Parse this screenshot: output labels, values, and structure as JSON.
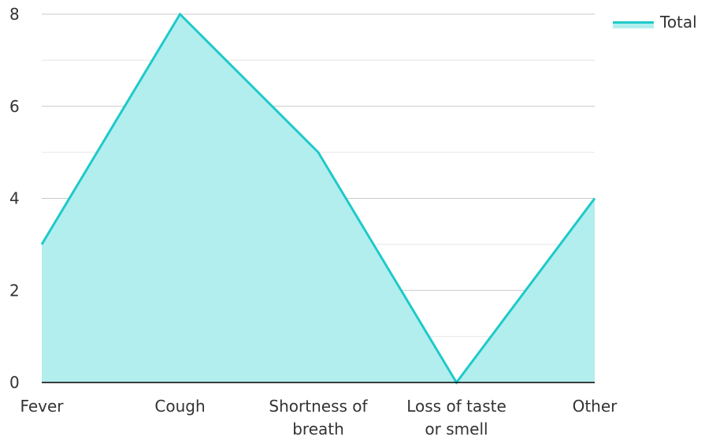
{
  "chart_data": {
    "type": "area",
    "categories": [
      "Fever",
      "Cough",
      "Shortness of breath",
      "Loss of taste or smell",
      "Other"
    ],
    "category_lines": [
      [
        "Fever"
      ],
      [
        "Cough"
      ],
      [
        "Shortness of",
        "breath"
      ],
      [
        "Loss of taste",
        "or smell"
      ],
      [
        "Other"
      ]
    ],
    "series": [
      {
        "name": "Total",
        "values": [
          3,
          8,
          5,
          0,
          4
        ]
      }
    ],
    "ylim": [
      0,
      8
    ],
    "yticks": [
      0,
      2,
      4,
      6,
      8
    ],
    "ytick_labels": [
      "0",
      "2",
      "4",
      "6",
      "8"
    ],
    "grid": true,
    "legend_position": "top-right",
    "colors": {
      "line": "#1fc9c9",
      "fill": "#b2eeee",
      "grid_major": "#c8c8c8",
      "grid_minor": "#e6e6e6",
      "axis": "#000000"
    }
  },
  "legend": {
    "label": "Total"
  }
}
